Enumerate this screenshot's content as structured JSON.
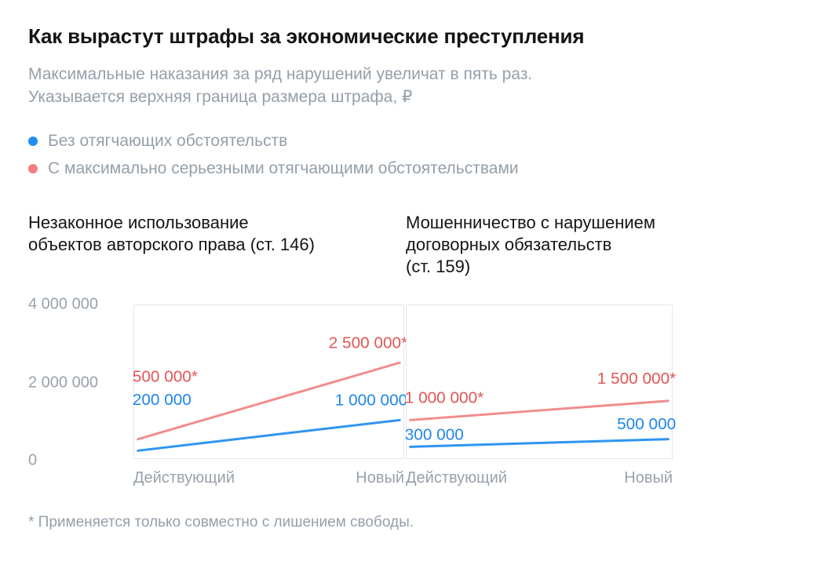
{
  "page": {
    "title": "Как вырастут штрафы за экономические преступления",
    "subtitle_lines": [
      "Максимальные наказания за ряд нарушений увеличат в пять раз.",
      "Указывается верхняя граница размера штрафа, ₽"
    ],
    "footnote": "* Применяется только совместно с лишением свободы."
  },
  "legend": {
    "items": [
      {
        "id": "no-aggravating",
        "label": "Без отягчающих обстоятельств",
        "color": "#1e8ff2"
      },
      {
        "id": "max-aggravating",
        "label": "С максимально серьезными отягчающими обстоятельствами",
        "color": "#f57d7d"
      }
    ]
  },
  "colors": {
    "title_text": "#141414",
    "muted_text": "#959fa9",
    "axis_text": "#99a1ab",
    "axis_line": "#e4e7ea",
    "background": "#ffffff",
    "blue_line": "#2e95f1",
    "blue_label": "#1f85eb",
    "red_line": "#f18c8c",
    "red_label": "#e25555"
  },
  "chart_data": [
    {
      "type": "line",
      "title": "Незаконное использование объектов авторского права (ст. 146)",
      "title_lines": [
        "Незаконное использование",
        "объектов авторского права (ст. 146)"
      ],
      "categories": [
        "Действующий",
        "Новый"
      ],
      "xlabel": "",
      "ylabel": "",
      "ylim": [
        0,
        4000000
      ],
      "grid": false,
      "yticks": [
        {
          "value": 4000000,
          "label": "4 000 000"
        },
        {
          "value": 2000000,
          "label": "2 000 000"
        },
        {
          "value": 0,
          "label": "0"
        }
      ],
      "series": [
        {
          "id": "no-aggravating",
          "name": "Без отягчающих обстоятельств",
          "line_color": "#2e95f1",
          "label_color": "#1f85eb",
          "values": [
            200000,
            1000000
          ],
          "point_labels": [
            {
              "text": "200 000",
              "dy": -59
            },
            {
              "text": "1 000 000",
              "dy": -19
            }
          ]
        },
        {
          "id": "max-aggravating",
          "name": "С максимально серьезными отягчающими обстоятельствами",
          "line_color": "#f18c8c",
          "label_color": "#e25555",
          "values": [
            500000,
            2500000
          ],
          "point_labels": [
            {
              "text": "500 000*",
              "dy": -74
            },
            {
              "text": "2 500 000*",
              "dy": -19
            }
          ]
        }
      ]
    },
    {
      "type": "line",
      "title": "Мошенничество с нарушением договорных обязательств (ст. 159)",
      "title_lines": [
        "Мошенничество с нарушением",
        "договорных обязательств",
        "(ст. 159)"
      ],
      "categories": [
        "Действующий",
        "Новый"
      ],
      "xlabel": "",
      "ylabel": "",
      "ylim": [
        0,
        4000000
      ],
      "grid": false,
      "yticks": [],
      "series": [
        {
          "id": "no-aggravating",
          "name": "Без отягчающих обстоятельств",
          "line_color": "#2e95f1",
          "label_color": "#1f85eb",
          "values": [
            300000,
            500000
          ],
          "point_labels": [
            {
              "text": "300 000",
              "dy": -9
            },
            {
              "text": "500 000",
              "dy": -13
            }
          ]
        },
        {
          "id": "max-aggravating",
          "name": "С максимально серьезными отягчающими обстоятельствами",
          "line_color": "#f18c8c",
          "label_color": "#e25555",
          "values": [
            1000000,
            1500000
          ],
          "point_labels": [
            {
              "text": "1 000 000*",
              "dy": -22
            },
            {
              "text": "1 500 000*",
              "dy": -22
            }
          ]
        }
      ]
    }
  ]
}
